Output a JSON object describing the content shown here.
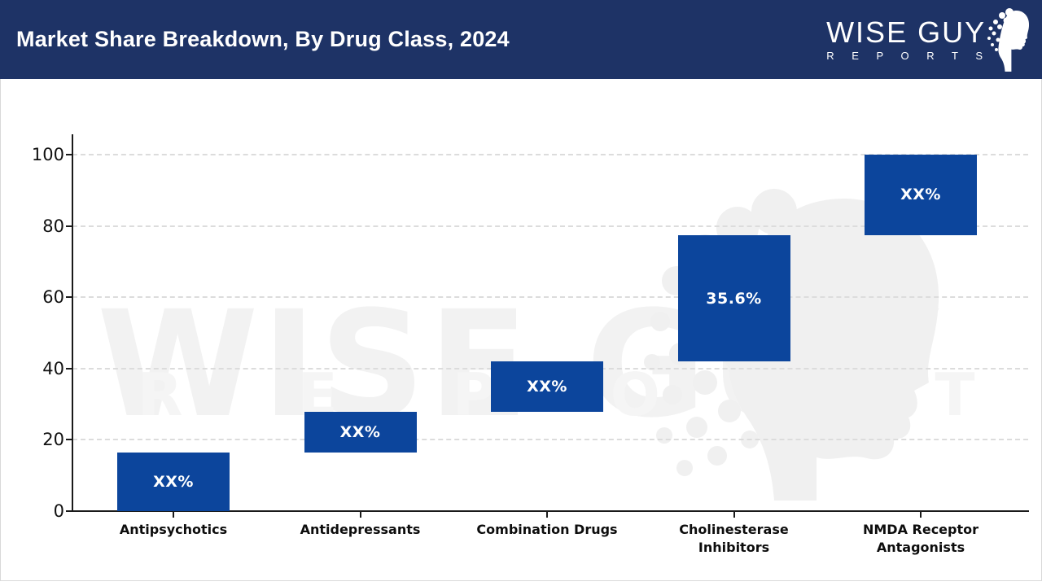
{
  "header": {
    "title": "Market Share Breakdown, By Drug Class, 2024",
    "logo": {
      "wordmark": "WISE GUY",
      "subtext": "R E P O R T S"
    }
  },
  "watermark": {
    "wordmark": "WISE GUY",
    "subtext": "R E P O R T S"
  },
  "colors": {
    "header_bg": "#1e3366",
    "bar": "#0c459c",
    "grid": "#dcdcdc",
    "axis": "#1a1a1a",
    "watermark": "#f2f2f2"
  },
  "chart_data": {
    "type": "bar",
    "variant": "waterfall",
    "title": "Market Share Breakdown, By Drug Class, 2024",
    "categories": [
      "Antipsychotics",
      "Antidepressants",
      "Combination Drugs",
      "Cholinesterase\nInhibitors",
      "NMDA Receptor\nAntagonists"
    ],
    "series": [
      {
        "name": "Market share (%)",
        "segments": [
          {
            "category": "Antipsychotics",
            "start": 0,
            "end": 16.4,
            "label": "XX%"
          },
          {
            "category": "Antidepressants",
            "start": 16.4,
            "end": 27.9,
            "label": "XX%"
          },
          {
            "category": "Combination Drugs",
            "start": 27.9,
            "end": 41.9,
            "label": "XX%"
          },
          {
            "category": "Cholinesterase Inhibitors",
            "start": 41.9,
            "end": 77.5,
            "label": "35.6%"
          },
          {
            "category": "NMDA Receptor Antagonists",
            "start": 77.5,
            "end": 100,
            "label": "XX%"
          }
        ]
      }
    ],
    "bar_labels": [
      "XX%",
      "XX%",
      "XX%",
      "35.6%",
      "XX%"
    ],
    "ylim": [
      0,
      100
    ],
    "yticks": [
      "0",
      "20",
      "40",
      "60",
      "80",
      "100"
    ],
    "grid": "horizontal-dashed",
    "legend": "none"
  }
}
